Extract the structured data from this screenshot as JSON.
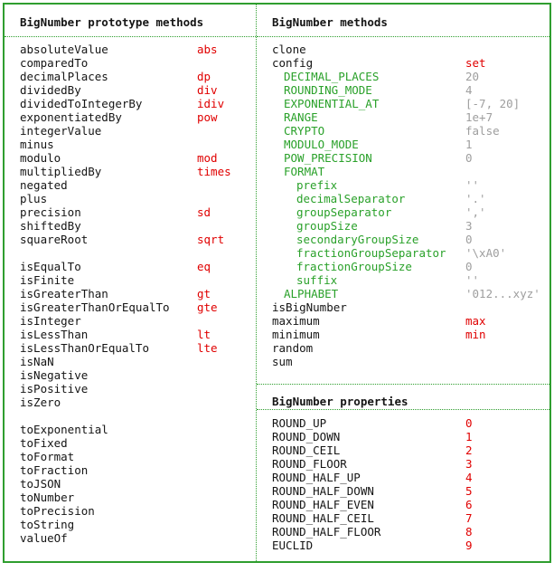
{
  "colors": {
    "accent_green": "#2f9e2f",
    "key_green": "#2aa12a",
    "alias_red": "#e00000",
    "value_gray": "#9e9e9e",
    "text_black": "#151515"
  },
  "left_panel": {
    "title": "BigNumber prototype methods",
    "groups": [
      [
        {
          "name": "absoluteValue",
          "alias": "abs"
        },
        {
          "name": "comparedTo",
          "alias": ""
        },
        {
          "name": "decimalPlaces",
          "alias": "dp"
        },
        {
          "name": "dividedBy",
          "alias": "div"
        },
        {
          "name": "dividedToIntegerBy",
          "alias": "idiv"
        },
        {
          "name": "exponentiatedBy",
          "alias": "pow"
        },
        {
          "name": "integerValue",
          "alias": ""
        },
        {
          "name": "minus",
          "alias": ""
        },
        {
          "name": "modulo",
          "alias": "mod"
        },
        {
          "name": "multipliedBy",
          "alias": "times"
        },
        {
          "name": "negated",
          "alias": ""
        },
        {
          "name": "plus",
          "alias": ""
        },
        {
          "name": "precision",
          "alias": "sd"
        },
        {
          "name": "shiftedBy",
          "alias": ""
        },
        {
          "name": "squareRoot",
          "alias": "sqrt"
        }
      ],
      [
        {
          "name": "isEqualTo",
          "alias": "eq"
        },
        {
          "name": "isFinite",
          "alias": ""
        },
        {
          "name": "isGreaterThan",
          "alias": "gt"
        },
        {
          "name": "isGreaterThanOrEqualTo",
          "alias": "gte"
        },
        {
          "name": "isInteger",
          "alias": ""
        },
        {
          "name": "isLessThan",
          "alias": "lt"
        },
        {
          "name": "isLessThanOrEqualTo",
          "alias": "lte"
        },
        {
          "name": "isNaN",
          "alias": ""
        },
        {
          "name": "isNegative",
          "alias": ""
        },
        {
          "name": "isPositive",
          "alias": ""
        },
        {
          "name": "isZero",
          "alias": ""
        }
      ],
      [
        {
          "name": "toExponential",
          "alias": ""
        },
        {
          "name": "toFixed",
          "alias": ""
        },
        {
          "name": "toFormat",
          "alias": ""
        },
        {
          "name": "toFraction",
          "alias": ""
        },
        {
          "name": "toJSON",
          "alias": ""
        },
        {
          "name": "toNumber",
          "alias": ""
        },
        {
          "name": "toPrecision",
          "alias": ""
        },
        {
          "name": "toString",
          "alias": ""
        },
        {
          "name": "valueOf",
          "alias": ""
        }
      ]
    ]
  },
  "right_panel": {
    "methods": {
      "title": "BigNumber methods",
      "rows": [
        {
          "name": "clone",
          "value": "",
          "type": "method",
          "indent": 0
        },
        {
          "name": "config",
          "value": "set",
          "type": "method",
          "indent": 0
        },
        {
          "name": "DECIMAL_PLACES",
          "value": "20",
          "type": "key",
          "indent": 1
        },
        {
          "name": "ROUNDING_MODE",
          "value": "4",
          "type": "key",
          "indent": 1
        },
        {
          "name": "EXPONENTIAL_AT",
          "value": "[-7, 20]",
          "type": "key",
          "indent": 1
        },
        {
          "name": "RANGE",
          "value": "1e+7",
          "type": "key",
          "indent": 1
        },
        {
          "name": "CRYPTO",
          "value": "false",
          "type": "key",
          "indent": 1
        },
        {
          "name": "MODULO_MODE",
          "value": "1",
          "type": "key",
          "indent": 1
        },
        {
          "name": "POW_PRECISION",
          "value": "0",
          "type": "key",
          "indent": 1
        },
        {
          "name": "FORMAT",
          "value": "",
          "type": "key",
          "indent": 1
        },
        {
          "name": "prefix",
          "value": "''",
          "type": "key",
          "indent": 2
        },
        {
          "name": "decimalSeparator",
          "value": "'.'",
          "type": "key",
          "indent": 2
        },
        {
          "name": "groupSeparator",
          "value": "','",
          "type": "key",
          "indent": 2
        },
        {
          "name": "groupSize",
          "value": "3",
          "type": "key",
          "indent": 2
        },
        {
          "name": "secondaryGroupSize",
          "value": "0",
          "type": "key",
          "indent": 2
        },
        {
          "name": "fractionGroupSeparator",
          "value": "'\\xA0'",
          "type": "key",
          "indent": 2
        },
        {
          "name": "fractionGroupSize",
          "value": "0",
          "type": "key",
          "indent": 2
        },
        {
          "name": "suffix",
          "value": "''",
          "type": "key",
          "indent": 2
        },
        {
          "name": "ALPHABET",
          "value": "'012...xyz'",
          "type": "key",
          "indent": 1
        },
        {
          "name": "isBigNumber",
          "value": "",
          "type": "method",
          "indent": 0
        },
        {
          "name": "maximum",
          "value": "max",
          "type": "method",
          "indent": 0
        },
        {
          "name": "minimum",
          "value": "min",
          "type": "method",
          "indent": 0
        },
        {
          "name": "random",
          "value": "",
          "type": "method",
          "indent": 0
        },
        {
          "name": "sum",
          "value": "",
          "type": "method",
          "indent": 0
        }
      ]
    },
    "properties": {
      "title": "BigNumber properties",
      "rows": [
        {
          "name": "ROUND_UP",
          "value": "0"
        },
        {
          "name": "ROUND_DOWN",
          "value": "1"
        },
        {
          "name": "ROUND_CEIL",
          "value": "2"
        },
        {
          "name": "ROUND_FLOOR",
          "value": "3"
        },
        {
          "name": "ROUND_HALF_UP",
          "value": "4"
        },
        {
          "name": "ROUND_HALF_DOWN",
          "value": "5"
        },
        {
          "name": "ROUND_HALF_EVEN",
          "value": "6"
        },
        {
          "name": "ROUND_HALF_CEIL",
          "value": "7"
        },
        {
          "name": "ROUND_HALF_FLOOR",
          "value": "8"
        },
        {
          "name": "EUCLID",
          "value": "9"
        }
      ]
    }
  }
}
